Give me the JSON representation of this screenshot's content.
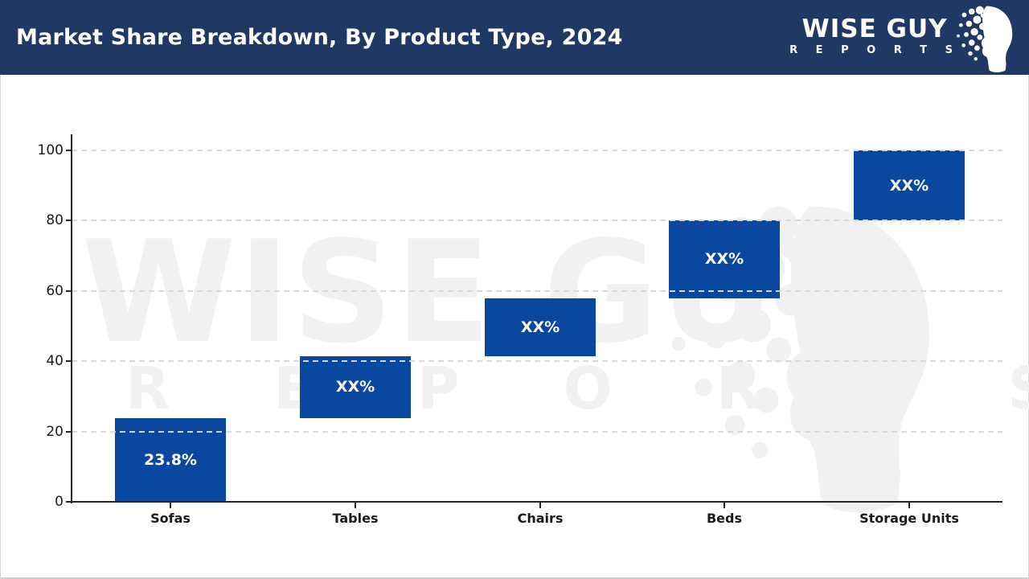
{
  "header": {
    "title": "Market Share Breakdown, By Product Type, 2024",
    "logo": {
      "line1": "WISE GUY",
      "line2": "R E P O R T S"
    }
  },
  "watermark": {
    "line1": "WISE GUY",
    "line2": "R E P O R T S"
  },
  "chart_data": {
    "type": "bar",
    "subtype": "waterfall",
    "title": "Market Share Breakdown, By Product Type, 2024",
    "categories": [
      "Sofas",
      "Tables",
      "Chairs",
      "Beds",
      "Storage Units"
    ],
    "segments": [
      {
        "category": "Sofas",
        "start": 0,
        "end": 23.8,
        "label": "23.8%"
      },
      {
        "category": "Tables",
        "start": 23.8,
        "end": 41.5,
        "label": "XX%"
      },
      {
        "category": "Chairs",
        "start": 41.5,
        "end": 58,
        "label": "XX%"
      },
      {
        "category": "Beds",
        "start": 58,
        "end": 80,
        "label": "XX%"
      },
      {
        "category": "Storage Units",
        "start": 80,
        "end": 100,
        "label": "XX%"
      }
    ],
    "yticks": [
      0,
      20,
      40,
      60,
      80,
      100
    ],
    "ylim": [
      0,
      105
    ],
    "xlabel": "",
    "ylabel": "",
    "grid": "horizontal-dashed-over-bars",
    "legend": "none"
  },
  "colors": {
    "header_bg": "#1F3864",
    "bar": "#0A479E",
    "bar_label": "#ffffff",
    "grid": "#d9d9d9",
    "axis": "#262626",
    "watermark": "#f1f1f2"
  }
}
